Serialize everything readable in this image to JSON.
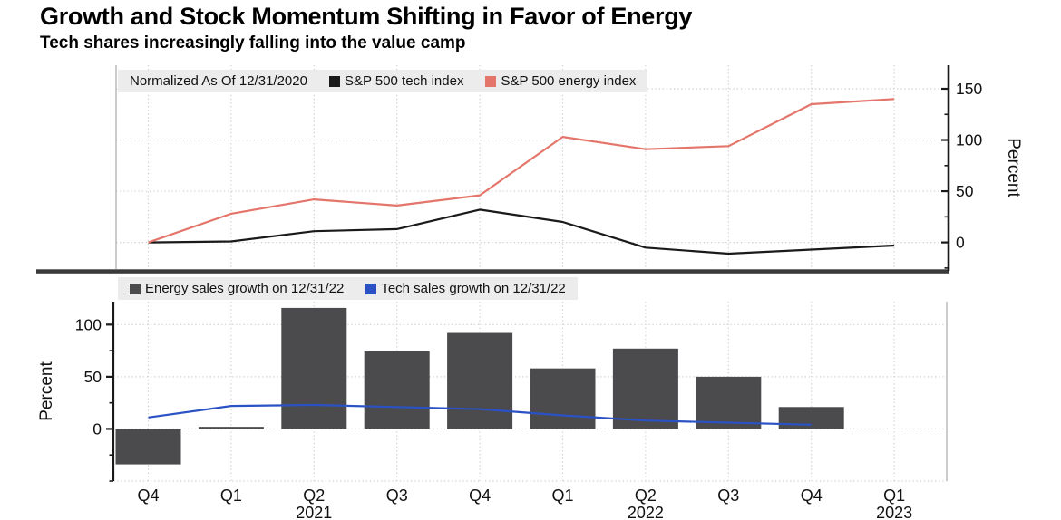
{
  "header": {
    "title": "Growth and Stock Momentum Shifting in Favor of Energy",
    "subtitle": "Tech shares increasingly falling into the value camp"
  },
  "colors": {
    "tech_line": "#1a1a1a",
    "energy_line": "#e4756a",
    "bars": "#4b4b4d",
    "tech_sales_line": "#2a52c4",
    "legend_bg": "#ececec",
    "grid": "#cfcfcf",
    "separator": "#3a3a3a",
    "axis": "#1a1a1a",
    "spine_light": "#9a9a9a"
  },
  "chart_data": [
    {
      "type": "line",
      "panel": "top",
      "legend": {
        "note": "Normalized As Of 12/31/2020",
        "entries": [
          {
            "label": "S&P 500 tech index",
            "color": "#1a1a1a"
          },
          {
            "label": "S&P 500 energy index",
            "color": "#e4756a"
          }
        ]
      },
      "x": [
        "Q4 2020",
        "Q1 2021",
        "Q2 2021",
        "Q3 2021",
        "Q4 2021",
        "Q1 2022",
        "Q2 2022",
        "Q3 2022",
        "Q4 2022",
        "Q1 2023"
      ],
      "series": [
        {
          "name": "S&P 500 tech index",
          "values": [
            0,
            1,
            11,
            13,
            32,
            20,
            -5,
            -11,
            -7,
            -3
          ]
        },
        {
          "name": "S&P 500 energy index",
          "values": [
            0,
            28,
            42,
            36,
            46,
            103,
            91,
            94,
            135,
            140
          ]
        }
      ],
      "ylabel": "Percent",
      "yaxis_side": "right",
      "yticks": [
        0,
        50,
        100,
        150
      ],
      "minor_ticks": [
        -25,
        25,
        75,
        125
      ],
      "ylim": [
        -26,
        173
      ],
      "grid": true,
      "legend_position": "top-left-inside"
    },
    {
      "type": "bar",
      "panel": "bottom",
      "legend": {
        "entries": [
          {
            "label": "Energy sales growth on 12/31/22",
            "color": "#4b4b4d"
          },
          {
            "label": "Tech sales growth on 12/31/22",
            "color": "#2a52c4"
          }
        ]
      },
      "categories": [
        "Q4",
        "Q1",
        "Q2",
        "Q3",
        "Q4",
        "Q1",
        "Q2",
        "Q3",
        "Q4",
        "Q1"
      ],
      "year_labels": [
        {
          "index": 2,
          "label": "2021"
        },
        {
          "index": 6,
          "label": "2022"
        },
        {
          "index": 9,
          "label": "2023"
        }
      ],
      "series": [
        {
          "name": "Energy sales growth on 12/31/22",
          "type": "bar",
          "values": [
            -34,
            2,
            116,
            75,
            92,
            58,
            77,
            50,
            21,
            null
          ]
        },
        {
          "name": "Tech sales growth on 12/31/22",
          "type": "line",
          "values": [
            11,
            22,
            23,
            21,
            19,
            13,
            8,
            6,
            4,
            null
          ]
        }
      ],
      "ylabel": "Percent",
      "yaxis_side": "left",
      "yticks": [
        0,
        50,
        100
      ],
      "minor_ticks": [
        -50,
        -25,
        25,
        75
      ],
      "grid_lines": [
        -50,
        0,
        50,
        100
      ],
      "ylim": [
        -50,
        122
      ],
      "grid": true,
      "legend_position": "top-left-inside"
    }
  ]
}
